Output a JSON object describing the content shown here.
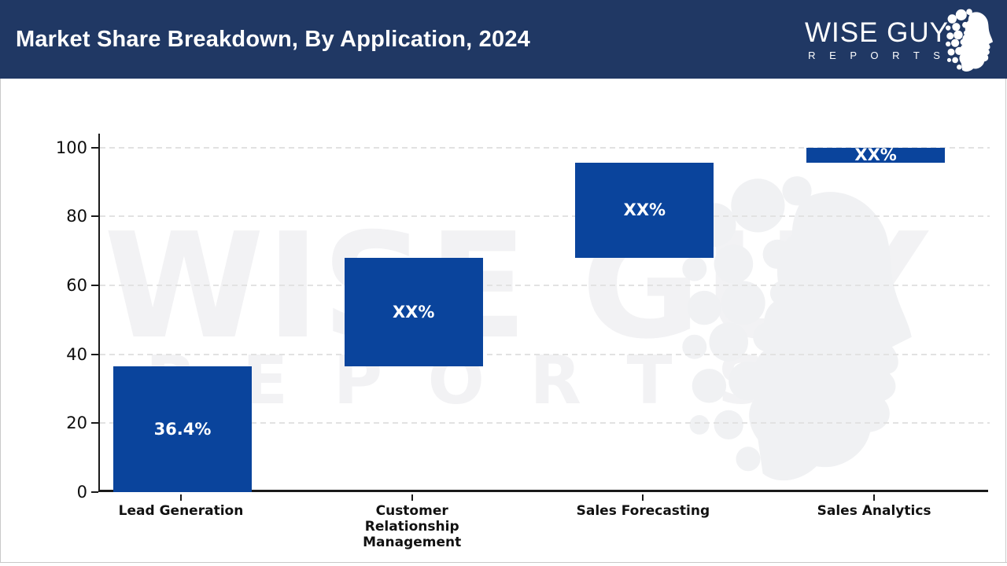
{
  "header": {
    "title": "Market Share Breakdown, By Application, 2024",
    "logo": {
      "line1": "WISE GUY",
      "line2": "R E P O R T S"
    }
  },
  "watermark": {
    "line1": "WISE GUY",
    "line2": "R E P O R T S"
  },
  "colors": {
    "header_bg": "#203864",
    "bar": "#0a449c",
    "grid": "#e2e2e2",
    "axis": "#1a1a1a",
    "bar_label": "#ffffff",
    "watermark": "#f2f2f4"
  },
  "chart_data": {
    "type": "bar",
    "subtype": "waterfall",
    "title": "Market Share Breakdown, By Application, 2024",
    "categories": [
      "Lead Generation",
      "Customer Relationship Management",
      "Sales Forecasting",
      "Sales Analytics"
    ],
    "segments": [
      {
        "category": "Lead Generation",
        "start": 0,
        "end": 36.4,
        "label": "36.4%"
      },
      {
        "category": "Customer Relationship Management",
        "start": 36.4,
        "end": 68,
        "label": "XX%"
      },
      {
        "category": "Sales Forecasting",
        "start": 68,
        "end": 95.5,
        "label": "XX%"
      },
      {
        "category": "Sales Analytics",
        "start": 95.5,
        "end": 100,
        "label": "XX%"
      }
    ],
    "yticks": [
      0,
      20,
      40,
      60,
      80,
      100
    ],
    "ylim": [
      0,
      104
    ],
    "xlabel": "",
    "ylabel": "",
    "grid": "horizontal-dashed",
    "legend": "none"
  }
}
